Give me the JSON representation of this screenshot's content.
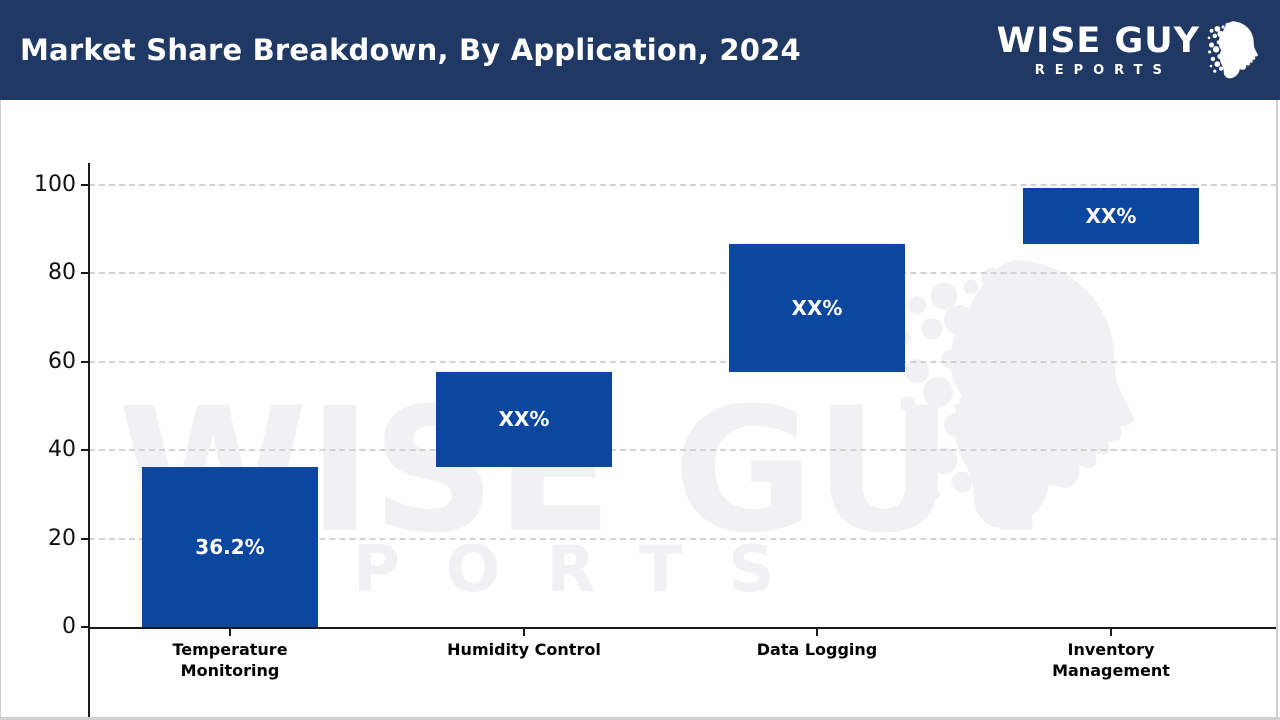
{
  "header": {
    "title": "Market Share Breakdown, By Application, 2024",
    "logo": {
      "name": "WISE GUY",
      "sub": "REPORTS"
    }
  },
  "watermark": {
    "name": "WISE GUY",
    "sub": "REPORTS"
  },
  "colors": {
    "header_bg": "#203864",
    "bar": "#0b479f",
    "bar_label": "#ffffff",
    "gridline": "#d2d2d2",
    "axis": "#1a1a1a",
    "watermark": "#f1f1f3"
  },
  "chart_data": {
    "type": "bar",
    "subtype": "waterfall",
    "title": "Market Share Breakdown, By Application, 2024",
    "unit": "%",
    "categories": [
      "Temperature\nMonitoring",
      "Humidity Control",
      "Data Logging",
      "Inventory\nManagement"
    ],
    "bars": [
      {
        "category": "Temperature Monitoring",
        "label": "36.2%",
        "start": 0,
        "end": 36.2
      },
      {
        "category": "Humidity Control",
        "label": "XX%",
        "start": 36.2,
        "end": 57.7
      },
      {
        "category": "Data Logging",
        "label": "XX%",
        "start": 57.7,
        "end": 86.7
      },
      {
        "category": "Inventory Management",
        "label": "XX%",
        "start": 86.7,
        "end": 99.3
      }
    ],
    "xlabel": "",
    "ylabel": "",
    "ylim": [
      0,
      100
    ],
    "yticks": [
      0,
      20,
      40,
      60,
      80,
      100
    ],
    "grid": "horizontal dashed",
    "legend": null,
    "bar_color": "#0b479f"
  }
}
